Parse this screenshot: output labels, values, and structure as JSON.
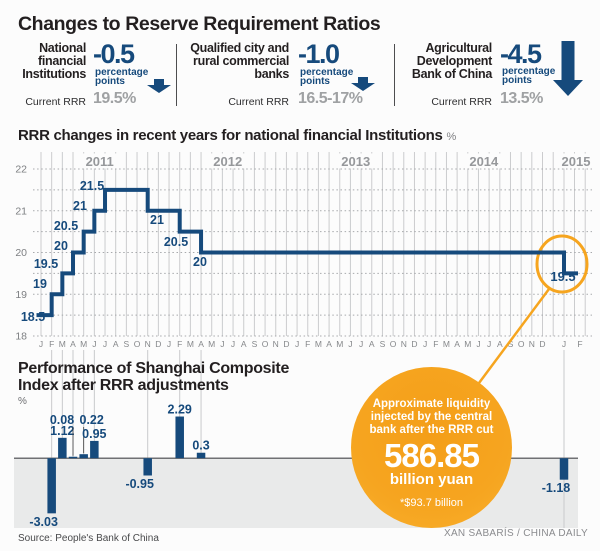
{
  "header": {
    "title": "Changes to Reserve Requirement Ratios",
    "boxes": [
      {
        "name_lines": [
          "National",
          "financial",
          "Institutions"
        ],
        "change": "-0.5",
        "unit_lines": [
          "percentage",
          "points"
        ],
        "current_label": "Current RRR",
        "current_value": "19.5%",
        "arrow": "small-down-arrow"
      },
      {
        "name_lines": [
          "Qualified city and",
          "rural commercial",
          "banks"
        ],
        "change": "-1.0",
        "unit_lines": [
          "percentage",
          "points"
        ],
        "current_label": "Current RRR",
        "current_value": "16.5-17%",
        "arrow": "small-down-arrow"
      },
      {
        "name_lines": [
          "Agricultural",
          "Development",
          "Bank of China"
        ],
        "change": "-4.5",
        "unit_lines": [
          "percentage",
          "points"
        ],
        "current_label": "Current RRR",
        "current_value": "13.5%",
        "arrow": "large-down-arrow"
      }
    ]
  },
  "sections": {
    "line_chart_title": "RRR changes in recent years for national financial Institutions",
    "line_chart_unit": "%",
    "bar_chart_title_lines": [
      "Performance of Shanghai Composite",
      "Index after RRR adjustments"
    ],
    "bar_chart_unit": "%"
  },
  "callout": {
    "text_lines": [
      "Approximate liquidity",
      "injected by the central",
      "bank after the RRR cut"
    ],
    "value": "586.85",
    "value_unit": "billion yuan",
    "note": "*$93.7 billion",
    "highlight_point_label": "19.5"
  },
  "footer": {
    "source": "Source: People's Bank of China",
    "credit": "XAN SABARÍS / CHINA DAILY"
  },
  "colors": {
    "navy": "#164a7c",
    "orange": "#f6a51f",
    "grid": "#cbccce",
    "dotted_grid": "#a7a9ac",
    "axis_text": "#7d7f82",
    "month_text": "#85878a",
    "year_text": "#96989b",
    "shade": "#e9eaea",
    "baseline": "#707174",
    "connector": "#c9cacc",
    "leader": "#404041",
    "value_gray": "#9fa1a3"
  },
  "chart_data": [
    {
      "type": "line",
      "line_style": "step",
      "title": "RRR changes in recent years for national financial Institutions",
      "ylabel": "%",
      "ylim": [
        18,
        22
      ],
      "yticks": [
        22,
        21,
        20,
        19,
        18
      ],
      "grid": true,
      "legend": false,
      "years": [
        {
          "label": "2011",
          "months": 12
        },
        {
          "label": "2012",
          "months": 12
        },
        {
          "label": "2013",
          "months": 12
        },
        {
          "label": "2014",
          "months": 12
        },
        {
          "label": "2015",
          "months": 2
        }
      ],
      "month_letters": [
        "J",
        "F",
        "M",
        "A",
        "M",
        "J",
        "J",
        "A",
        "S",
        "O",
        "N",
        "D"
      ],
      "start_value": 18.5,
      "changes": [
        {
          "month_index": 1,
          "value": 19
        },
        {
          "month_index": 2,
          "value": 19.5
        },
        {
          "month_index": 3,
          "value": 20
        },
        {
          "month_index": 4,
          "value": 20.5
        },
        {
          "month_index": 5,
          "value": 21
        },
        {
          "month_index": 6,
          "value": 21.5
        },
        {
          "month_index": 10,
          "value": 21
        },
        {
          "month_index": 13,
          "value": 20.5
        },
        {
          "month_index": 15,
          "value": 20
        },
        {
          "month_index": 48,
          "value": 19.5
        }
      ],
      "point_labels": [
        "18.5",
        "19",
        "19.5",
        "20",
        "20.5",
        "21",
        "21.5",
        "21",
        "20.5",
        "20"
      ],
      "highlight": {
        "month_index": 48,
        "value": 19.5,
        "label": "19.5"
      }
    },
    {
      "type": "bar",
      "title": "Performance of Shanghai Composite Index after RRR adjustments",
      "ylabel": "%",
      "bars": [
        {
          "month_index": 1,
          "value": -3.03,
          "label": "-3.03"
        },
        {
          "month_index": 2,
          "value": 1.12,
          "label": "1.12"
        },
        {
          "month_index": 3,
          "value": 0.08,
          "label": "0.08"
        },
        {
          "month_index": 4,
          "value": 0.22,
          "label": "0.22"
        },
        {
          "month_index": 5,
          "value": 0.95,
          "label": "0.95"
        },
        {
          "month_index": 10,
          "value": -0.95,
          "label": "-0.95"
        },
        {
          "month_index": 13,
          "value": 2.29,
          "label": "2.29"
        },
        {
          "month_index": 15,
          "value": 0.3,
          "label": "0.3"
        },
        {
          "month_index": 48,
          "value": -1.18,
          "label": "-1.18"
        }
      ]
    }
  ]
}
